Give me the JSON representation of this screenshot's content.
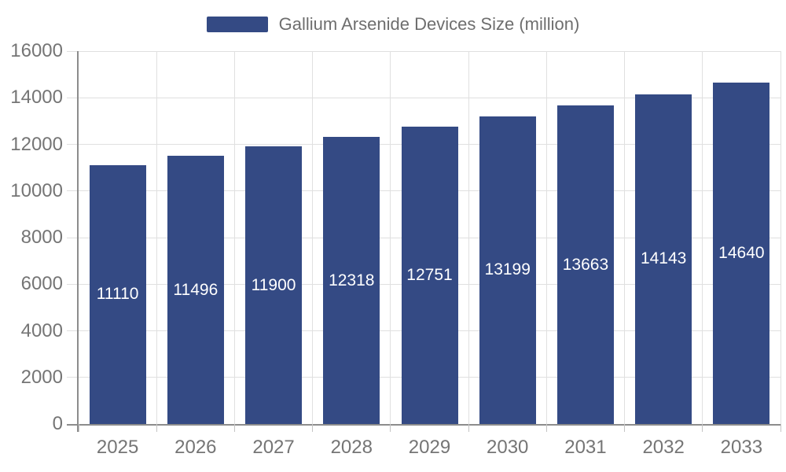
{
  "chart_data": {
    "type": "bar",
    "series_name": "Gallium Arsenide Devices Size (million)",
    "categories": [
      "2025",
      "2026",
      "2027",
      "2028",
      "2029",
      "2030",
      "2031",
      "2032",
      "2033"
    ],
    "values": [
      11110,
      11496,
      11900,
      12318,
      12751,
      13199,
      13663,
      14143,
      14640
    ],
    "yticks": [
      0,
      2000,
      4000,
      6000,
      8000,
      10000,
      12000,
      14000,
      16000
    ],
    "ylim": [
      0,
      16000
    ],
    "xlabel": "",
    "ylabel": "",
    "grid": true,
    "legend_position": "top",
    "colors": {
      "bar": "#344a84",
      "value_label": "#ffffff",
      "axis": "#8c8c8c",
      "grid": "#e0e0e0",
      "tick": "#c4c4c4",
      "tick_label": "#757575",
      "legend_text": "#6e6e6e",
      "background": "#ffffff"
    }
  }
}
